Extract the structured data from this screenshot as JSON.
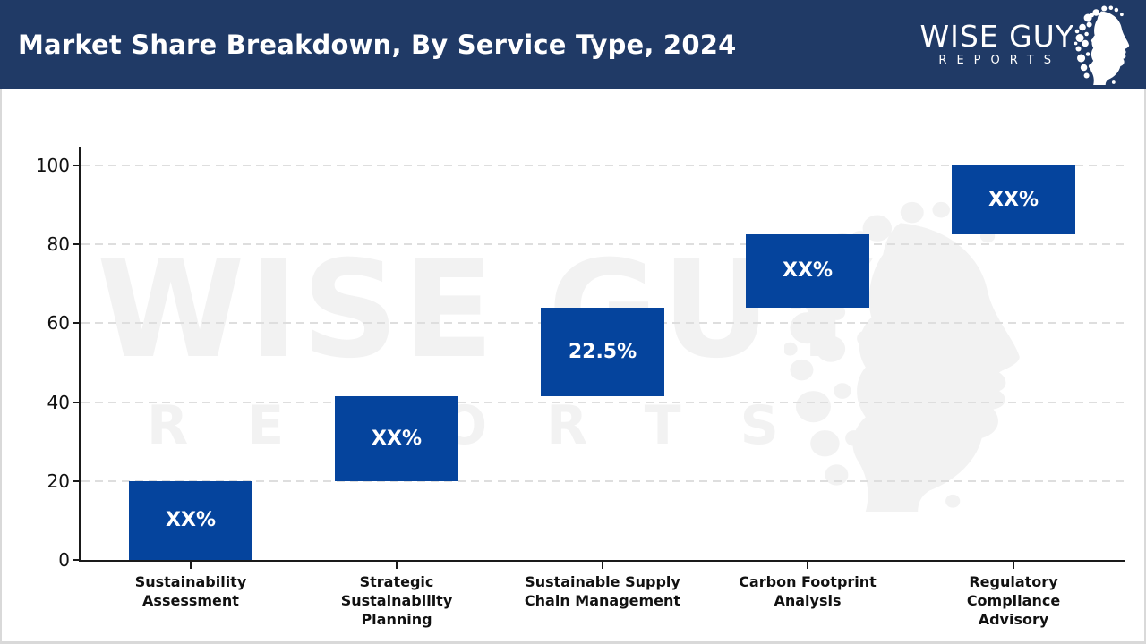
{
  "header": {
    "title": "Market Share Breakdown, By Service Type, 2024",
    "logo": {
      "name": "WISE GUY",
      "sub": "REPORTS"
    }
  },
  "watermark": {
    "name": "WISE GUY",
    "sub": "REPORTS"
  },
  "colors": {
    "header_bg": "#203a66",
    "bar": "#05449d",
    "bar_label": "#ffffff",
    "grid": "#dedede",
    "axis": "#1a1a1a",
    "watermark": "#f2f2f2",
    "page_border": "#d9d9d9"
  },
  "chart_data": {
    "type": "bar",
    "variant": "waterfall",
    "title": "Market Share Breakdown, By Service Type, 2024",
    "categories": [
      "Sustainability Assessment",
      "Strategic Sustainability Planning",
      "Sustainable Supply Chain Management",
      "Carbon Footprint Analysis",
      "Regulatory Compliance Advisory"
    ],
    "segments": [
      {
        "category": "Sustainability Assessment",
        "category_lines": [
          "Sustainability",
          "Assessment"
        ],
        "start": 0,
        "end": 20,
        "value_label": "XX%"
      },
      {
        "category": "Strategic Sustainability Planning",
        "category_lines": [
          "Strategic",
          "Sustainability",
          "Planning"
        ],
        "start": 20,
        "end": 41.5,
        "value_label": "XX%"
      },
      {
        "category": "Sustainable Supply Chain Management",
        "category_lines": [
          "Sustainable Supply",
          "Chain Management"
        ],
        "start": 41.5,
        "end": 64,
        "value_label": "22.5%"
      },
      {
        "category": "Carbon Footprint Analysis",
        "category_lines": [
          "Carbon Footprint",
          "Analysis"
        ],
        "start": 64,
        "end": 82.5,
        "value_label": "XX%"
      },
      {
        "category": "Regulatory Compliance Advisory",
        "category_lines": [
          "Regulatory",
          "Compliance",
          "Advisory"
        ],
        "start": 82.5,
        "end": 100,
        "value_label": "XX%"
      }
    ],
    "ylim": [
      0,
      100
    ],
    "yticks": [
      0,
      20,
      40,
      60,
      80,
      100
    ],
    "grid": {
      "horizontal": true,
      "style": "dashed"
    },
    "legend": "none"
  }
}
